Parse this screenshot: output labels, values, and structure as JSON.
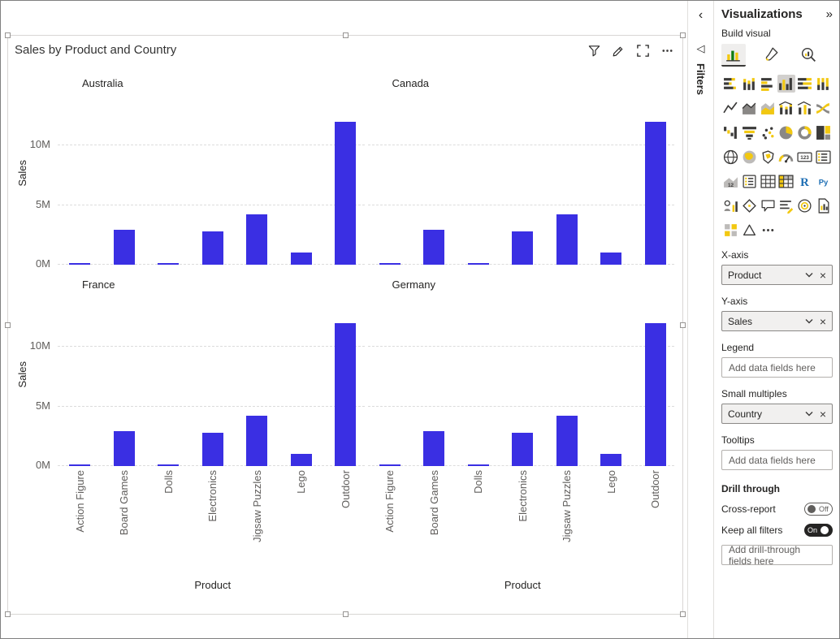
{
  "visual": {
    "title": "Sales by Product and Country",
    "toolbar": [
      {
        "name": "filters-icon",
        "kind": "filter-funnel"
      },
      {
        "name": "personalize-icon",
        "kind": "pencil"
      },
      {
        "name": "focus-mode-icon",
        "kind": "focus"
      },
      {
        "name": "more-options-icon",
        "kind": "more-h"
      }
    ]
  },
  "chart_data": {
    "type": "bar",
    "title": "Sales by Product and Country",
    "small_multiple_by": "Country",
    "categories": [
      "Action Figure",
      "Board Games",
      "Dolls",
      "Electronics",
      "Jigsaw Puzzles",
      "Lego",
      "Outdoor"
    ],
    "series": [
      {
        "name": "Australia",
        "values": [
          0.15,
          2.9,
          0.15,
          2.8,
          4.2,
          1.0,
          12.0
        ]
      },
      {
        "name": "Canada",
        "values": [
          0.15,
          2.9,
          0.15,
          2.8,
          4.2,
          1.0,
          12.0
        ]
      },
      {
        "name": "France",
        "values": [
          0.15,
          2.9,
          0.15,
          2.8,
          4.2,
          1.0,
          12.0
        ]
      },
      {
        "name": "Germany",
        "values": [
          0.15,
          2.9,
          0.15,
          2.8,
          4.2,
          1.0,
          12.0
        ]
      }
    ],
    "unit": "M",
    "xlabel": "Product",
    "ylabel": "Sales",
    "yticks": [
      0,
      5,
      10
    ],
    "ytick_labels": [
      "0M",
      "5M",
      "10M"
    ],
    "ylim": [
      0,
      14.3
    ],
    "bar_color": "#3a2fe3",
    "grid": "dashed horizontal",
    "legend": "none"
  },
  "filters": {
    "title": "Filters",
    "expand_icon": "‹",
    "pane_icon": "◁"
  },
  "visualizations": {
    "title": "Visualizations",
    "subtitle": "Build visual",
    "collapse_icon": "»",
    "tabs": [
      {
        "name": "build-visual",
        "kind": "tab-build",
        "selected": true
      },
      {
        "name": "format-visual",
        "kind": "tab-format",
        "selected": false
      },
      {
        "name": "analytics",
        "kind": "tab-analytics",
        "selected": false
      }
    ],
    "icons": [
      {
        "name": "stacked-bar-chart",
        "kind": "stacked-bar"
      },
      {
        "name": "stacked-column-chart",
        "kind": "stacked-column"
      },
      {
        "name": "clustered-bar-chart",
        "kind": "clustered-bar"
      },
      {
        "name": "clustered-column-chart",
        "kind": "clustered-column",
        "selected": true
      },
      {
        "name": "100-stacked-bar-chart",
        "kind": "pct-bar"
      },
      {
        "name": "100-stacked-column-chart",
        "kind": "pct-column"
      },
      {
        "name": "line-chart",
        "kind": "line"
      },
      {
        "name": "area-chart",
        "kind": "area"
      },
      {
        "name": "stacked-area-chart",
        "kind": "stacked-area"
      },
      {
        "name": "line-and-stacked-column-chart",
        "kind": "combo-line-stacked"
      },
      {
        "name": "line-and-clustered-column-chart",
        "kind": "combo-line-clustered"
      },
      {
        "name": "ribbon-chart",
        "kind": "ribbon"
      },
      {
        "name": "waterfall-chart",
        "kind": "waterfall"
      },
      {
        "name": "funnel-chart",
        "kind": "funnel"
      },
      {
        "name": "scatter-chart",
        "kind": "scatter"
      },
      {
        "name": "pie-chart",
        "kind": "pie"
      },
      {
        "name": "donut-chart",
        "kind": "donut"
      },
      {
        "name": "treemap",
        "kind": "treemap"
      },
      {
        "name": "map",
        "kind": "globe"
      },
      {
        "name": "filled-map",
        "kind": "filled-globe"
      },
      {
        "name": "shape-map",
        "kind": "shape"
      },
      {
        "name": "gauge",
        "kind": "gauge"
      },
      {
        "name": "card",
        "kind": "card"
      },
      {
        "name": "multi-row-card",
        "kind": "multi-row-card"
      },
      {
        "name": "kpi",
        "kind": "kpi"
      },
      {
        "name": "slicer",
        "kind": "slicer"
      },
      {
        "name": "table",
        "kind": "table"
      },
      {
        "name": "matrix",
        "kind": "matrix"
      },
      {
        "name": "r-script-visual",
        "kind": "letter-r"
      },
      {
        "name": "python-visual",
        "kind": "letter-py"
      },
      {
        "name": "key-influencers",
        "kind": "key-influencers"
      },
      {
        "name": "decomposition-tree",
        "kind": "decomposition"
      },
      {
        "name": "q-and-a",
        "kind": "bubble"
      },
      {
        "name": "smart-narrative",
        "kind": "narrative"
      },
      {
        "name": "metrics",
        "kind": "metrics"
      },
      {
        "name": "paginated-report",
        "kind": "paginated"
      },
      {
        "name": "arcgis-map",
        "kind": "arcgis"
      },
      {
        "name": "power-apps",
        "kind": "power-apps"
      },
      {
        "name": "more-visuals",
        "kind": "more-h"
      }
    ],
    "wells": [
      {
        "label": "X-axis",
        "value": "Product"
      },
      {
        "label": "Y-axis",
        "value": "Sales"
      },
      {
        "label": "Legend",
        "placeholder": "Add data fields here"
      },
      {
        "label": "Small multiples",
        "value": "Country"
      },
      {
        "label": "Tooltips",
        "placeholder": "Add data fields here"
      }
    ],
    "drill_through": {
      "title": "Drill through",
      "cross_report": {
        "label": "Cross-report",
        "state": "Off"
      },
      "keep_all_filters": {
        "label": "Keep all filters",
        "state": "On"
      },
      "placeholder": "Add drill-through fields here"
    }
  }
}
